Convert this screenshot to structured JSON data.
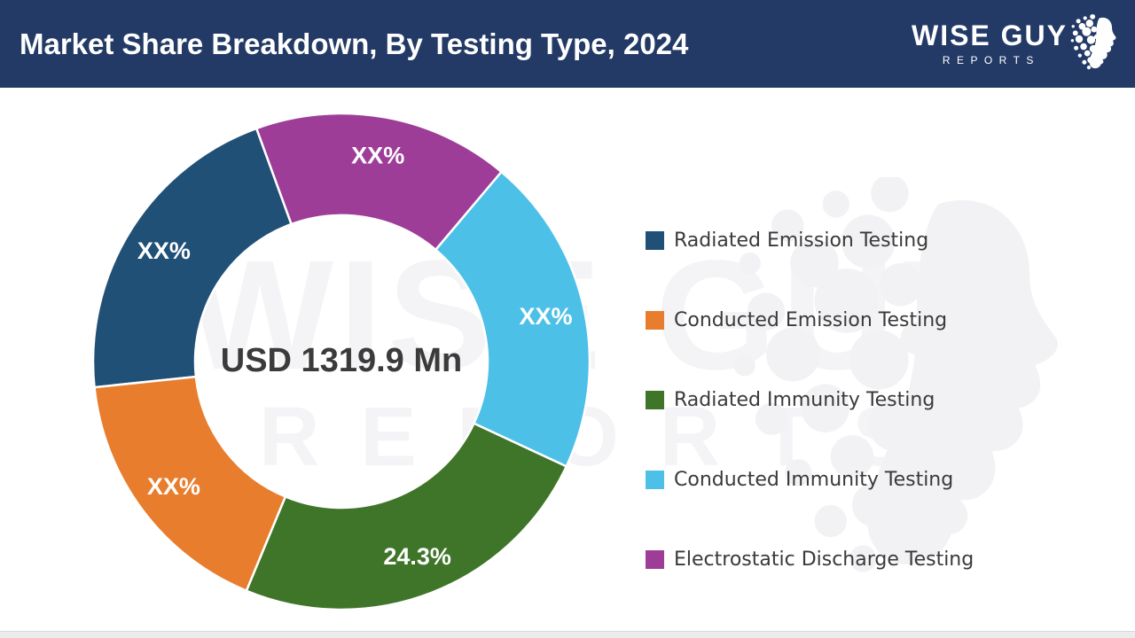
{
  "header": {
    "title": "Market Share Breakdown, By Testing Type, 2024",
    "background_color": "#233A66",
    "logo": {
      "name": "WISE GUY",
      "tagline": "REPORTS"
    }
  },
  "watermark": {
    "line1": "WISE GUY",
    "line2": "REPORTS"
  },
  "chart_data": {
    "type": "pie",
    "variant": "donut",
    "title": "Market Share Breakdown, By Testing Type, 2024",
    "center_label": "USD 1319.9 Mn",
    "legend_position": "right",
    "start_angle_deg_clockwise_from_north": -20,
    "winding": "counterclockwise",
    "segments": [
      {
        "label": "Radiated Emission Testing",
        "color": "#215077",
        "display_label": "XX%",
        "value_pct_est": 21.1
      },
      {
        "label": "Conducted Emission Testing",
        "color": "#E87D2E",
        "display_label": "XX%",
        "value_pct_est": 17.1
      },
      {
        "label": "Radiated Immunity Testing",
        "color": "#3F7528",
        "display_label": "24.3%",
        "value_pct_est": 24.3
      },
      {
        "label": "Conducted Immunity Testing",
        "color": "#4DC0E8",
        "display_label": "XX%",
        "value_pct_est": 20.8
      },
      {
        "label": "Electrostatic Discharge Testing",
        "color": "#9E3D98",
        "display_label": "XX%",
        "value_pct_est": 16.7
      }
    ]
  }
}
